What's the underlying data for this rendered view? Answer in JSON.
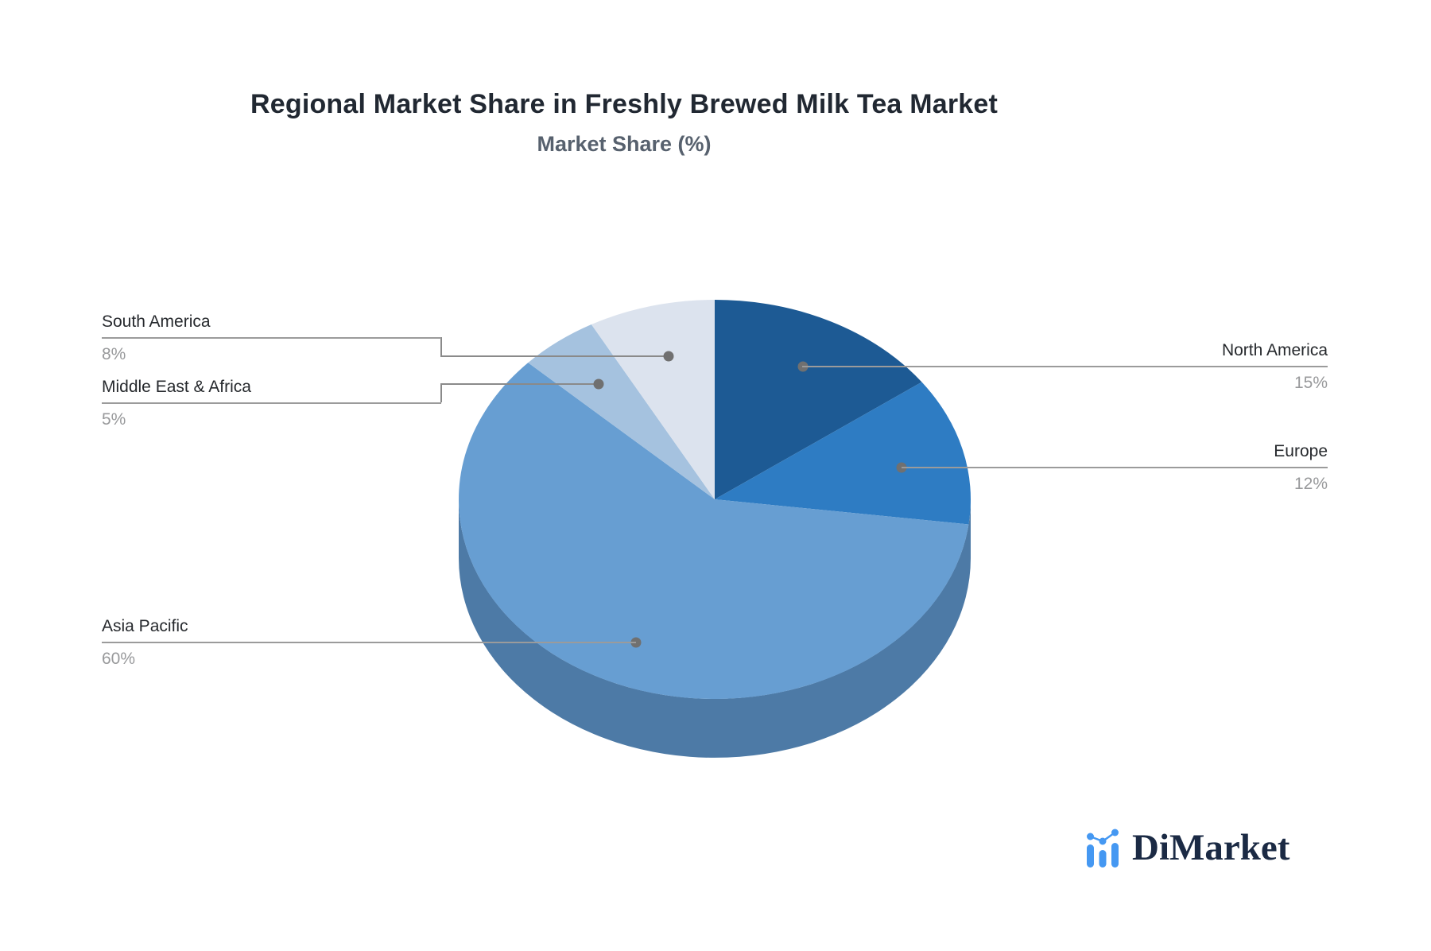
{
  "title": "Regional Market Share in Freshly Brewed Milk Tea Market",
  "subtitle": "Market Share (%)",
  "chart_data": {
    "type": "pie",
    "style": "3d",
    "unit": "%",
    "start_angle": "12-o-clock",
    "direction": "clockwise",
    "segments": [
      {
        "label": "North America",
        "value": 15,
        "display": "15%",
        "color": "#1D5A94",
        "label_side": "right"
      },
      {
        "label": "Europe",
        "value": 12,
        "display": "12%",
        "color": "#2E7CC3",
        "label_side": "right"
      },
      {
        "label": "Asia Pacific",
        "value": 60,
        "display": "60%",
        "color": "#679ED2",
        "label_side": "left"
      },
      {
        "label": "Middle East & Africa",
        "value": 5,
        "display": "5%",
        "color": "#A5C2DF",
        "label_side": "left"
      },
      {
        "label": "South America",
        "value": 8,
        "display": "8%",
        "color": "#DCE3EE",
        "label_side": "left"
      }
    ],
    "depth_color": "#4D7AA6",
    "leader_line_color": "#8a8a8a",
    "leader_dot_color": "#707070",
    "legend": "none",
    "grid": "off"
  },
  "branding": {
    "name": "DiMarket",
    "icon": "bar-chart-logo-icon",
    "text_color": "#1b2a44",
    "icon_color": "#4598F2"
  }
}
